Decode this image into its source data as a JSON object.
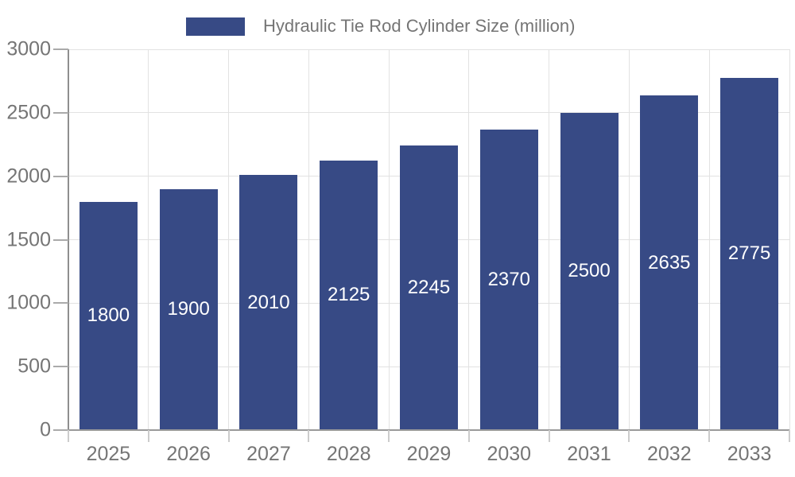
{
  "chart_data": {
    "type": "bar",
    "title": "Hydraulic Tie Rod Cylinder Size (million)",
    "legend_label": "Hydraulic Tie Rod Cylinder Size (million)",
    "legend_position": "top",
    "categories": [
      "2025",
      "2026",
      "2027",
      "2028",
      "2029",
      "2030",
      "2031",
      "2032",
      "2033"
    ],
    "series": [
      {
        "name": "Hydraulic Tie Rod Cylinder Size (million)",
        "values": [
          1800,
          1900,
          2010,
          2125,
          2245,
          2370,
          2500,
          2635,
          2775
        ]
      }
    ],
    "value_labels_shown": true,
    "xlabel": "",
    "ylabel": "",
    "ylim": [
      0,
      3000
    ],
    "y_ticks": [
      0,
      500,
      1000,
      1500,
      2000,
      2500,
      3000
    ],
    "grid": true,
    "colors": {
      "bar": "#374a85",
      "value_label": "#ffffff",
      "axis_text": "#757575",
      "gridline": "#e2e2e2",
      "axis_line": "#9a9a9a",
      "background": "#ffffff"
    }
  }
}
